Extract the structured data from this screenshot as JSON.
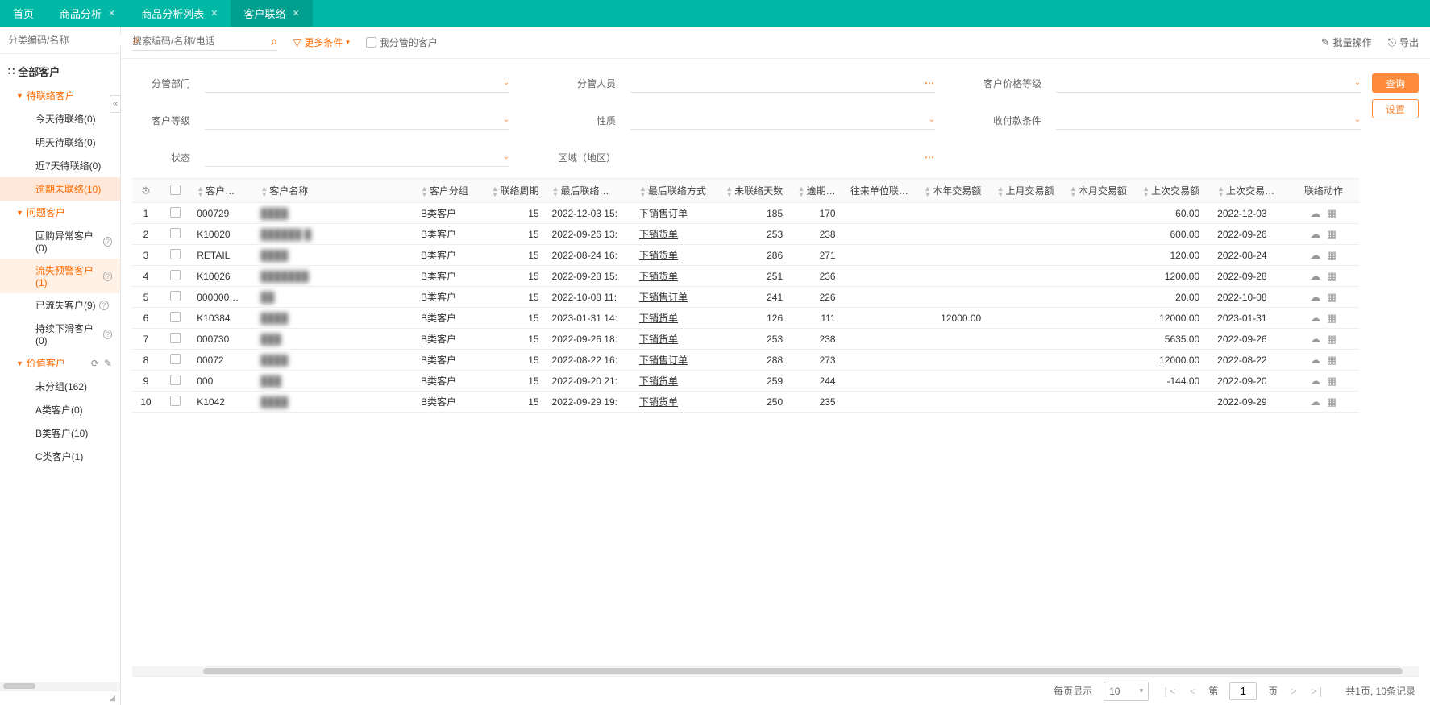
{
  "tabs": [
    {
      "label": "首页",
      "closable": false,
      "active": false
    },
    {
      "label": "商品分析",
      "closable": true,
      "active": false
    },
    {
      "label": "商品分析列表",
      "closable": true,
      "active": false
    },
    {
      "label": "客户联络",
      "closable": true,
      "active": true
    }
  ],
  "sidebar": {
    "search_placeholder": "分类编码/名称",
    "root_label": "全部客户",
    "groups": [
      {
        "label": "待联络客户",
        "items": [
          {
            "label": "今天待联络(0)"
          },
          {
            "label": "明天待联络(0)"
          },
          {
            "label": "近7天待联络(0)"
          },
          {
            "label": "逾期未联络(10)",
            "active": true
          }
        ]
      },
      {
        "label": "问题客户",
        "items": [
          {
            "label": "回购异常客户(0)",
            "q": true
          },
          {
            "label": "流失预警客户(1)",
            "q": true,
            "highlighted": true
          },
          {
            "label": "已流失客户(9)",
            "q": true
          },
          {
            "label": "持续下滑客户(0)",
            "q": true
          }
        ]
      },
      {
        "label": "价值客户",
        "extra_icons": true,
        "items": [
          {
            "label": "未分组(162)"
          },
          {
            "label": "A类客户(0)"
          },
          {
            "label": "B类客户(10)"
          },
          {
            "label": "C类客户(1)"
          }
        ]
      }
    ]
  },
  "toolbar": {
    "search_placeholder": "搜索编码/名称/电话",
    "more_label": "更多条件",
    "my_customers_label": "我分管的客户",
    "batch_label": "批量操作",
    "export_label": "导出"
  },
  "filters": {
    "fields": [
      {
        "label": "分管部门",
        "kind": "caret"
      },
      {
        "label": "分管人员",
        "kind": "dots"
      },
      {
        "label": "客户价格等级",
        "kind": "caret"
      },
      {
        "label": "客户等级",
        "kind": "caret"
      },
      {
        "label": "性质",
        "kind": "caret"
      },
      {
        "label": "收付款条件",
        "kind": "caret"
      },
      {
        "label": "状态",
        "kind": "caret"
      },
      {
        "label": "区域（地区）",
        "kind": "dots",
        "no_line": true
      }
    ],
    "search_label": "查询",
    "settings_label": "设置"
  },
  "table": {
    "columns": {
      "code": "客户…",
      "name": "客户名称",
      "group": "客户分组",
      "cycle": "联络周期",
      "lasttime": "最后联络…",
      "lastway": "最后联络方式",
      "days": "未联络天数",
      "overdue": "逾期…",
      "unit": "往来单位联…",
      "yearamt": "本年交易额",
      "lastmonth": "上月交易额",
      "thismonth": "本月交易额",
      "lastamt": "上次交易额",
      "lastdate": "上次交易日期",
      "actions": "联络动作"
    },
    "rows": [
      {
        "idx": "1",
        "code": "000729",
        "name": "████",
        "group": "B类客户",
        "cycle": "15",
        "lasttime": "2022-12-03 15:",
        "lastway": "下销售订单",
        "days": "185",
        "overdue": "170",
        "unit": "",
        "yearamt": "",
        "lastmonth": "",
        "thismonth": "",
        "lastamt": "60.00",
        "lastdate": "2022-12-03"
      },
      {
        "idx": "2",
        "code": "K10020",
        "name": "██████ █",
        "group": "B类客户",
        "cycle": "15",
        "lasttime": "2022-09-26 13:",
        "lastway": "下销货单",
        "days": "253",
        "overdue": "238",
        "unit": "",
        "yearamt": "",
        "lastmonth": "",
        "thismonth": "",
        "lastamt": "600.00",
        "lastdate": "2022-09-26"
      },
      {
        "idx": "3",
        "code": "RETAIL",
        "name": "████",
        "group": "B类客户",
        "cycle": "15",
        "lasttime": "2022-08-24 16:",
        "lastway": "下销货单",
        "days": "286",
        "overdue": "271",
        "unit": "",
        "yearamt": "",
        "lastmonth": "",
        "thismonth": "",
        "lastamt": "120.00",
        "lastdate": "2022-08-24"
      },
      {
        "idx": "4",
        "code": "K10026",
        "name": "███████",
        "group": "B类客户",
        "cycle": "15",
        "lasttime": "2022-09-28 15:",
        "lastway": "下销货单",
        "days": "251",
        "overdue": "236",
        "unit": "",
        "yearamt": "",
        "lastmonth": "",
        "thismonth": "",
        "lastamt": "1200.00",
        "lastdate": "2022-09-28"
      },
      {
        "idx": "5",
        "code": "000000…",
        "name": "██",
        "group": "B类客户",
        "cycle": "15",
        "lasttime": "2022-10-08 11:",
        "lastway": "下销售订单",
        "days": "241",
        "overdue": "226",
        "unit": "",
        "yearamt": "",
        "lastmonth": "",
        "thismonth": "",
        "lastamt": "20.00",
        "lastdate": "2022-10-08"
      },
      {
        "idx": "6",
        "code": "K10384",
        "name": "████",
        "group": "B类客户",
        "cycle": "15",
        "lasttime": "2023-01-31 14:",
        "lastway": "下销货单",
        "days": "126",
        "overdue": "111",
        "unit": "",
        "yearamt": "12000.00",
        "lastmonth": "",
        "thismonth": "",
        "lastamt": "12000.00",
        "lastdate": "2023-01-31"
      },
      {
        "idx": "7",
        "code": "000730",
        "name": "███",
        "group": "B类客户",
        "cycle": "15",
        "lasttime": "2022-09-26 18:",
        "lastway": "下销货单",
        "days": "253",
        "overdue": "238",
        "unit": "",
        "yearamt": "",
        "lastmonth": "",
        "thismonth": "",
        "lastamt": "5635.00",
        "lastdate": "2022-09-26"
      },
      {
        "idx": "8",
        "code": "00072",
        "name": "████",
        "group": "B类客户",
        "cycle": "15",
        "lasttime": "2022-08-22 16:",
        "lastway": "下销售订单",
        "days": "288",
        "overdue": "273",
        "unit": "",
        "yearamt": "",
        "lastmonth": "",
        "thismonth": "",
        "lastamt": "12000.00",
        "lastdate": "2022-08-22"
      },
      {
        "idx": "9",
        "code": "000",
        "name": "███",
        "group": "B类客户",
        "cycle": "15",
        "lasttime": "2022-09-20 21:",
        "lastway": "下销货单",
        "days": "259",
        "overdue": "244",
        "unit": "",
        "yearamt": "",
        "lastmonth": "",
        "thismonth": "",
        "lastamt": "-144.00",
        "lastdate": "2022-09-20"
      },
      {
        "idx": "10",
        "code": "K1042",
        "name": "████",
        "group": "B类客户",
        "cycle": "15",
        "lasttime": "2022-09-29 19:",
        "lastway": "下销货单",
        "days": "250",
        "overdue": "235",
        "unit": "",
        "yearamt": "",
        "lastmonth": "",
        "thismonth": "",
        "lastamt": "",
        "lastdate": "2022-09-29"
      }
    ]
  },
  "pagination": {
    "per_page_label": "每页显示",
    "per_page_value": "10",
    "page_prefix": "第",
    "page_value": "1",
    "page_suffix": "页",
    "summary": "共1页, 10条记录"
  }
}
